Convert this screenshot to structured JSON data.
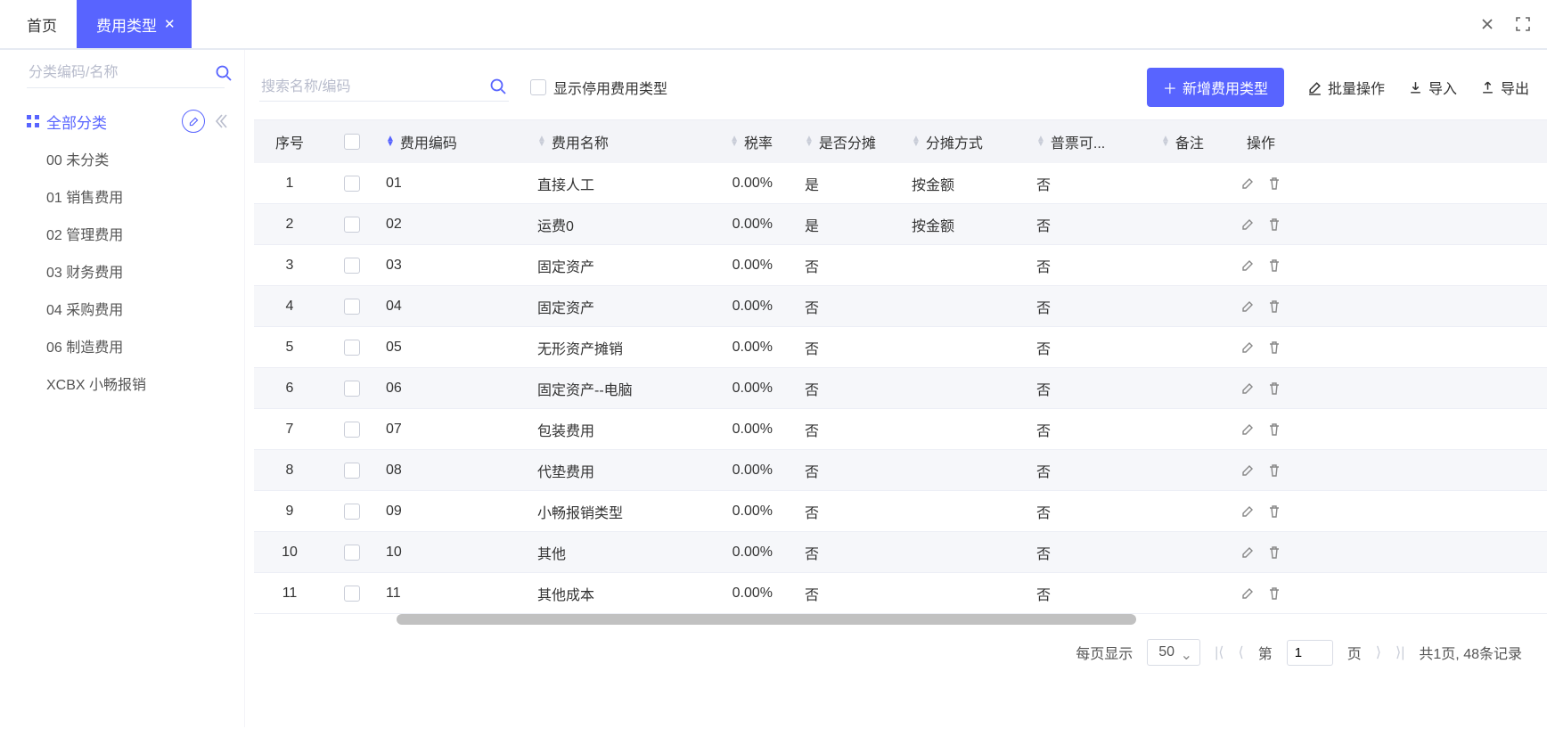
{
  "tabs": {
    "home": "首页",
    "active": "费用类型"
  },
  "sidebar": {
    "search_placeholder": "分类编码/名称",
    "all_label": "全部分类",
    "items": [
      {
        "label": "00 未分类"
      },
      {
        "label": "01 销售费用"
      },
      {
        "label": "02 管理费用"
      },
      {
        "label": "03 财务费用"
      },
      {
        "label": "04 采购费用"
      },
      {
        "label": "06 制造费用"
      },
      {
        "label": "XCBX 小畅报销"
      }
    ]
  },
  "toolbar": {
    "search_placeholder": "搜索名称/编码",
    "show_disabled_label": "显示停用费用类型",
    "new_label": "新增费用类型",
    "batch_label": "批量操作",
    "import_label": "导入",
    "export_label": "导出"
  },
  "columns": {
    "seq": "序号",
    "code": "费用编码",
    "name": "费用名称",
    "rate": "税率",
    "share": "是否分摊",
    "method": "分摊方式",
    "ticket": "普票可...",
    "note": "备注",
    "act": "操作"
  },
  "rows": [
    {
      "seq": "1",
      "code": "01",
      "name": "直接人工",
      "rate": "0.00%",
      "share": "是",
      "method": "按金额",
      "ticket": "否"
    },
    {
      "seq": "2",
      "code": "02",
      "name": "运费0",
      "rate": "0.00%",
      "share": "是",
      "method": "按金额",
      "ticket": "否"
    },
    {
      "seq": "3",
      "code": "03",
      "name": "固定资产",
      "rate": "0.00%",
      "share": "否",
      "method": "",
      "ticket": "否"
    },
    {
      "seq": "4",
      "code": "04",
      "name": "固定资产",
      "rate": "0.00%",
      "share": "否",
      "method": "",
      "ticket": "否"
    },
    {
      "seq": "5",
      "code": "05",
      "name": "无形资产摊销",
      "rate": "0.00%",
      "share": "否",
      "method": "",
      "ticket": "否"
    },
    {
      "seq": "6",
      "code": "06",
      "name": "固定资产--电脑",
      "rate": "0.00%",
      "share": "否",
      "method": "",
      "ticket": "否"
    },
    {
      "seq": "7",
      "code": "07",
      "name": "包装费用",
      "rate": "0.00%",
      "share": "否",
      "method": "",
      "ticket": "否"
    },
    {
      "seq": "8",
      "code": "08",
      "name": "代垫费用",
      "rate": "0.00%",
      "share": "否",
      "method": "",
      "ticket": "否"
    },
    {
      "seq": "9",
      "code": "09",
      "name": "小畅报销类型",
      "rate": "0.00%",
      "share": "否",
      "method": "",
      "ticket": "否"
    },
    {
      "seq": "10",
      "code": "10",
      "name": "其他",
      "rate": "0.00%",
      "share": "否",
      "method": "",
      "ticket": "否"
    },
    {
      "seq": "11",
      "code": "11",
      "name": "其他成本",
      "rate": "0.00%",
      "share": "否",
      "method": "",
      "ticket": "否"
    }
  ],
  "pager": {
    "per_page_label": "每页显示",
    "per_page_value": "50",
    "page_prefix": "第",
    "page_value": "1",
    "page_suffix": "页",
    "summary": "共1页, 48条记录"
  },
  "colors": {
    "primary": "#5864ff",
    "header_bg": "#f3f4f8",
    "row_alt": "#f6f7fa"
  }
}
